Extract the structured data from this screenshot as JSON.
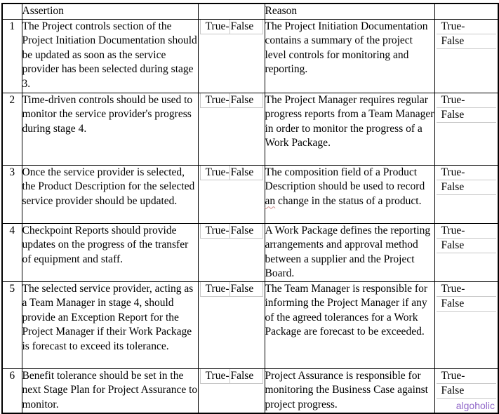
{
  "colors": {
    "watermark": "#9168c9",
    "spellcheck_underline": "#cc8888",
    "table_border": "#000000",
    "subcell_border": "#c6c6c6"
  },
  "watermark": "algoholic",
  "table": {
    "headers": {
      "num": "",
      "assertion": "Assertion",
      "assertion_tf": "",
      "reason": "Reason",
      "reason_tf": ""
    },
    "true_label": "True-",
    "false_label": "False",
    "rows": [
      {
        "num": "1",
        "assertion": "The Project controls section of the Project Initiation Documentation should be updated as soon as the service provider has been selected during stage 3.",
        "reason": "The Project Initiation Documentation contains a summary of the project level controls for monitoring and reporting."
      },
      {
        "num": "2",
        "assertion": "Time-driven controls should be used to monitor the service provider's progress during stage 4.",
        "reason": "The Project Manager requires regular progress reports from a Team Manager in order to monitor the progress of a Work Package."
      },
      {
        "num": "3",
        "assertion": "Once the service provider is selected, the Product Description for the selected service provider should be updated.",
        "reason_pre": "The composition field of a Product Description should be used to record ",
        "reason_misspelled": "an",
        "reason_post": " change in the status of a product."
      },
      {
        "num": "4",
        "assertion": "Checkpoint Reports should provide updates on the progress of the transfer of equipment and staff.",
        "reason": "A Work Package defines the reporting arrangements and approval method between a supplier and the Project Board."
      },
      {
        "num": "5",
        "assertion": "The selected service provider, acting as a Team Manager in stage 4, should provide an Exception Report for the Project Manager if their Work Package is forecast to exceed its tolerance.",
        "reason": "The Team Manager is responsible for informing the Project Manager if any of the agreed tolerances for a Work Package are forecast to be exceeded."
      },
      {
        "num": "6",
        "assertion": "Benefit tolerance should be set in the next Stage Plan for Project Assurance to monitor.",
        "reason": "Project Assurance is responsible for monitoring the Business Case against project progress."
      }
    ]
  }
}
